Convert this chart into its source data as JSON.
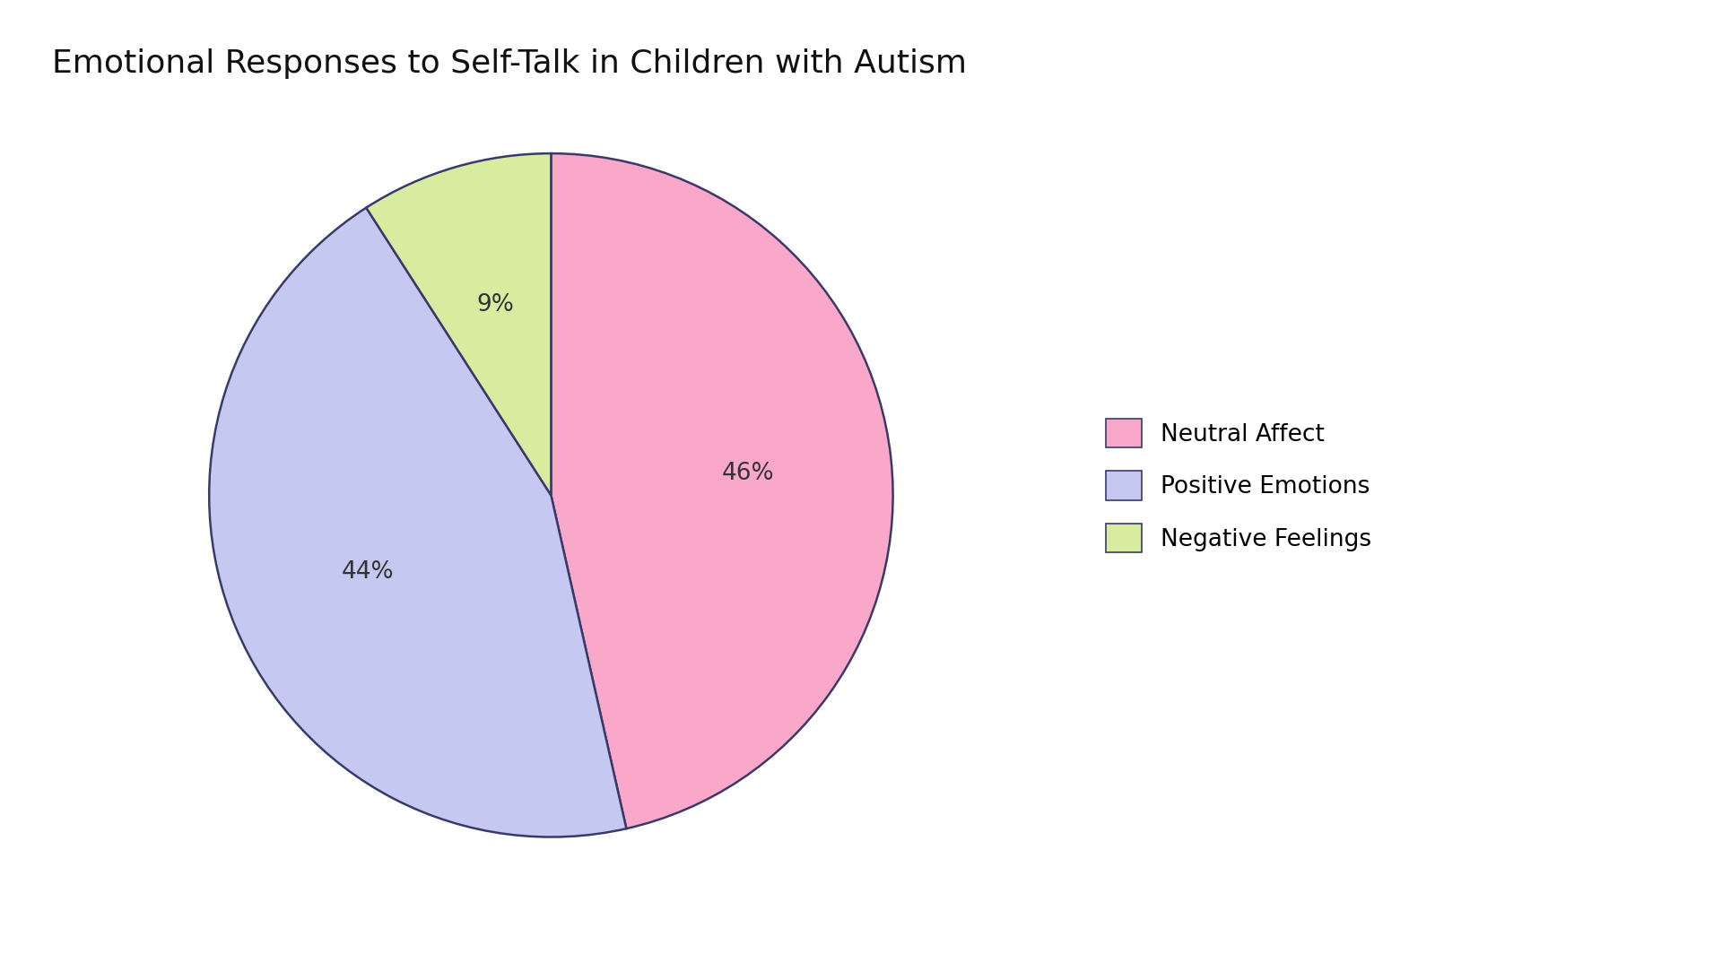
{
  "title": "Emotional Responses to Self-Talk in Children with Autism",
  "slices": [
    46,
    44,
    9
  ],
  "labels": [
    "Neutral Affect",
    "Positive Emotions",
    "Negative Feelings"
  ],
  "colors": [
    "#F9A8C9",
    "#C5C8F0",
    "#D8ECA0"
  ],
  "edge_color": "#3a3a6a",
  "pct_labels": [
    "46%",
    "44%",
    "9%"
  ],
  "start_angle": 90,
  "title_fontsize": 26,
  "pct_fontsize": 19,
  "legend_fontsize": 19,
  "background_color": "#ffffff"
}
